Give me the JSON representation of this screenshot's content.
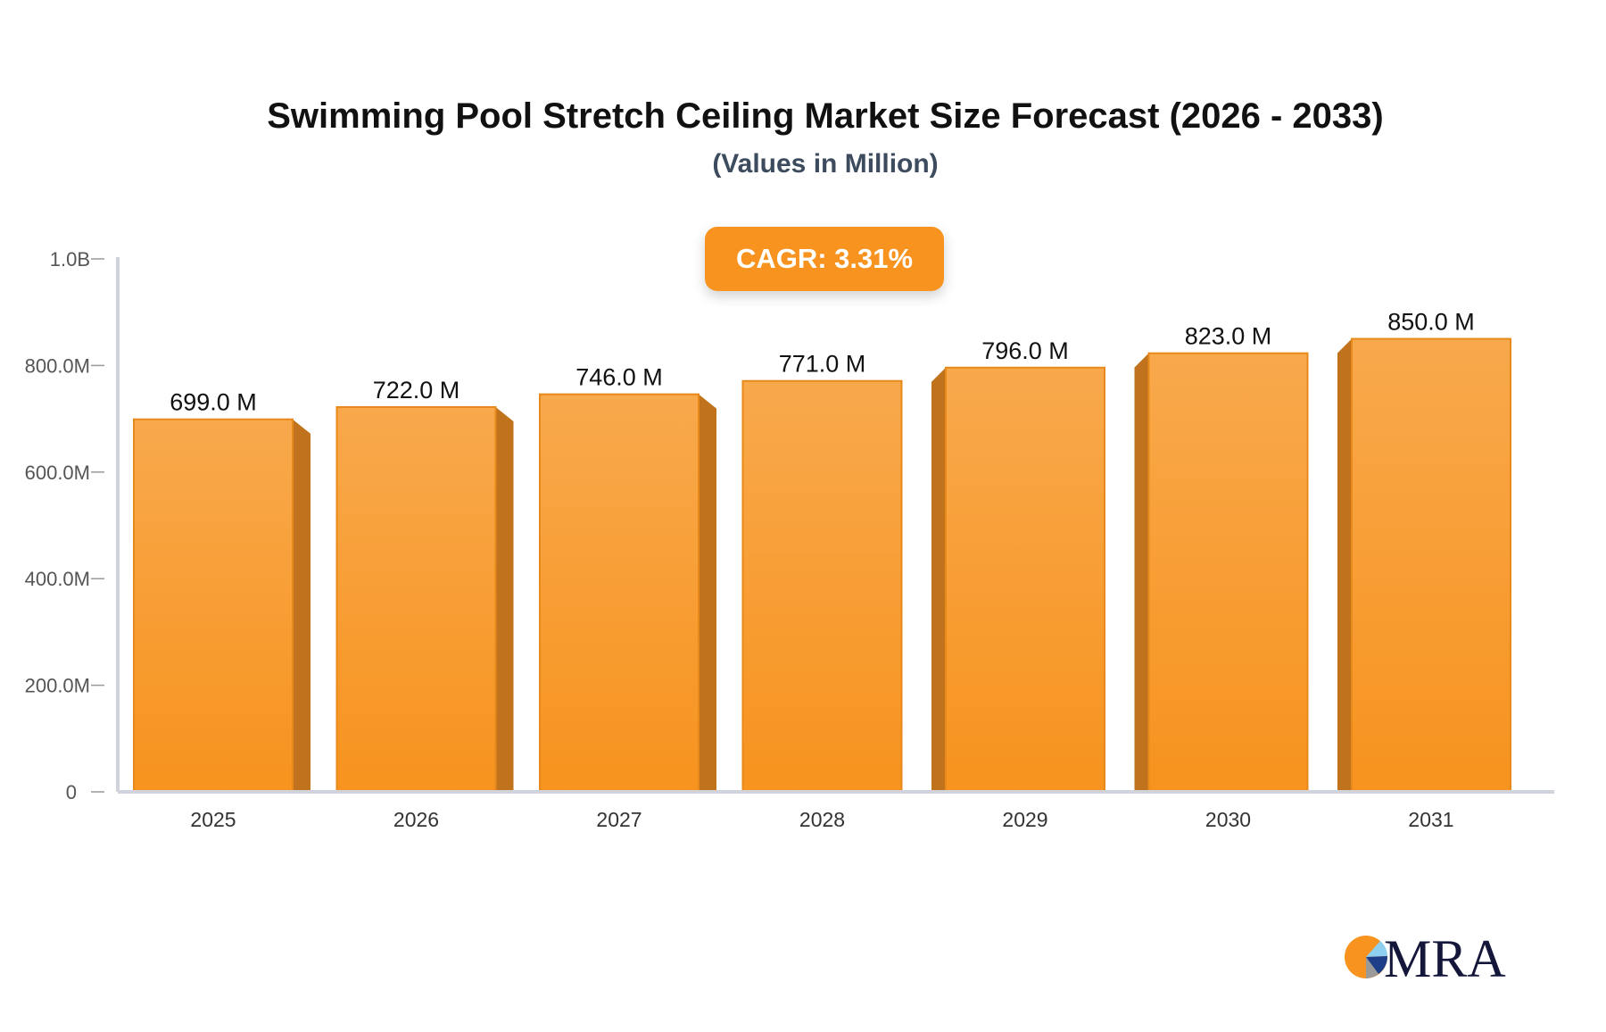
{
  "chart_data": {
    "type": "bar",
    "title": "Swimming Pool Stretch Ceiling Market Size Forecast (2026 - 2033)",
    "subtitle": "(Values in Million)",
    "annotation": "CAGR: 3.31%",
    "categories": [
      "2025",
      "2026",
      "2027",
      "2028",
      "2029",
      "2030",
      "2031"
    ],
    "values": [
      699.0,
      722.0,
      746.0,
      771.0,
      796.0,
      823.0,
      850.0
    ],
    "data_labels": [
      "699.0 M",
      "722.0 M",
      "746.0 M",
      "771.0 M",
      "796.0 M",
      "823.0 M",
      "850.0 M"
    ],
    "ylim": [
      0,
      1000
    ],
    "yticks": [
      0,
      200,
      400,
      600,
      800,
      1000
    ],
    "ytick_labels": [
      "0",
      "200.0M",
      "400.0M",
      "600.0M",
      "800.0M",
      "1.0B"
    ],
    "xlabel": "",
    "ylabel": "",
    "grid": false,
    "colors": {
      "bar_top": "#f8a94c",
      "bar_bottom": "#f7931e",
      "bar_side": "#c0721c",
      "badge": "#f7931e",
      "axis": "#d0d3dc"
    }
  },
  "logo": {
    "text": "MRA"
  }
}
